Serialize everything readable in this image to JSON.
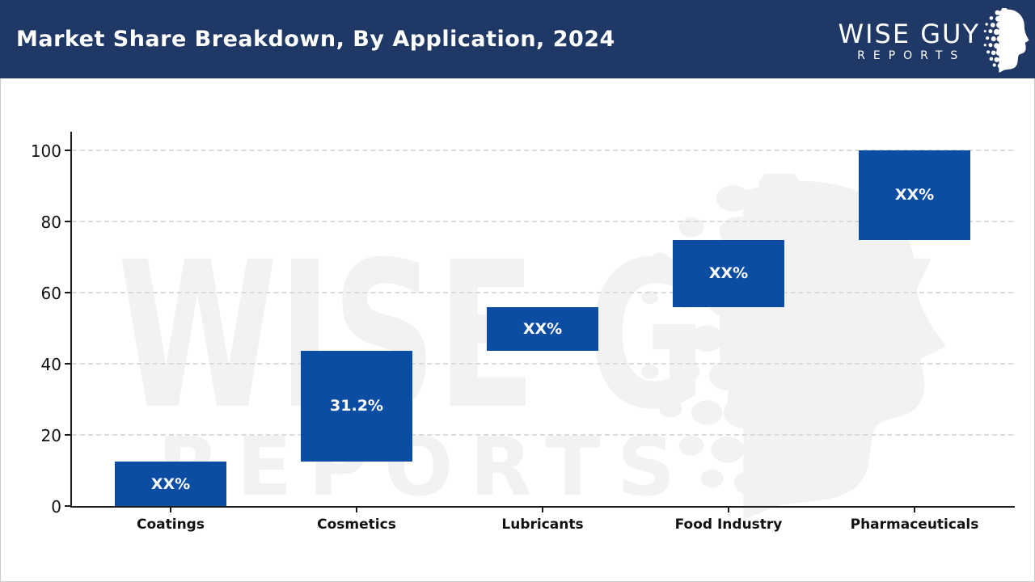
{
  "header": {
    "title": "Market Share Breakdown, By Application, 2024",
    "brand": {
      "name": "WISE GUY",
      "sub": "REPORTS"
    }
  },
  "watermark": {
    "line1": "WISE GUY",
    "line2": "REPORTS"
  },
  "chart_data": {
    "type": "bar",
    "subtype": "waterfall",
    "title": "Market Share Breakdown, By Application, 2024",
    "categories": [
      "Coatings",
      "Cosmetics",
      "Lubricants",
      "Food Industry",
      "Pharmaceuticals"
    ],
    "segments": [
      {
        "category": "Coatings",
        "start": 0,
        "end": 12.5,
        "value": 12.5,
        "label": "XX%"
      },
      {
        "category": "Cosmetics",
        "start": 12.5,
        "end": 43.7,
        "value": 31.2,
        "label": "31.2%"
      },
      {
        "category": "Lubricants",
        "start": 43.7,
        "end": 56.0,
        "value": 12.3,
        "label": "XX%"
      },
      {
        "category": "Food Industry",
        "start": 56.0,
        "end": 74.8,
        "value": 18.8,
        "label": "XX%"
      },
      {
        "category": "Pharmaceuticals",
        "start": 74.8,
        "end": 100.0,
        "value": 25.2,
        "label": "XX%"
      }
    ],
    "yticks": [
      0,
      20,
      40,
      60,
      80,
      100
    ],
    "ylim": [
      0,
      105
    ],
    "xlabel": "",
    "ylabel": "",
    "legend": "none",
    "grid": "horizontal-dashed"
  },
  "colors": {
    "header_bg": "#1f3866",
    "bar": "#0b4da2",
    "bar_label": "#ffffff",
    "grid": "#dbdbdb",
    "axis": "#1c1c1c",
    "tick_label": "#111111",
    "watermark": "#f2f2f2",
    "frame_border": "#cccccc"
  }
}
